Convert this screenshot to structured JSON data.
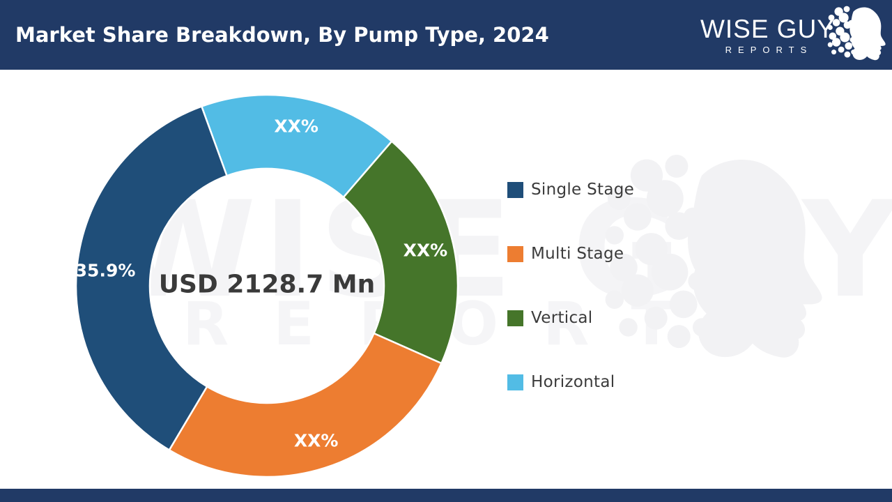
{
  "header": {
    "title": "Market Share Breakdown, By Pump Type, 2024",
    "logo": {
      "line1": "WISE GUY",
      "line2": "REPORTS"
    },
    "bg_color": "#213A66"
  },
  "watermark": {
    "line1": "WISE GUY",
    "line2": "REPORTS"
  },
  "chart_data": {
    "type": "pie",
    "variant": "donut",
    "title": "Market Share Breakdown, By Pump Type, 2024",
    "center_label": "USD 2128.7 Mn",
    "start_angle_deg": -20,
    "direction": "clockwise",
    "legend_position": "right",
    "segments": [
      {
        "name": "Horizontal",
        "value_pct": 16.9,
        "label": "XX%",
        "color": "#52BCE5"
      },
      {
        "name": "Vertical",
        "value_pct": 20.3,
        "label": "XX%",
        "color": "#45752A"
      },
      {
        "name": "Multi Stage",
        "value_pct": 26.9,
        "label": "XX%",
        "color": "#ED7D31"
      },
      {
        "name": "Single Stage",
        "value_pct": 35.9,
        "label": "35.9%",
        "color": "#1F4E79"
      }
    ],
    "legend": [
      {
        "label": "Single Stage",
        "color": "#1F4E79"
      },
      {
        "label": "Multi Stage",
        "color": "#ED7D31"
      },
      {
        "label": "Vertical",
        "color": "#45752A"
      },
      {
        "label": "Horizontal",
        "color": "#52BCE5"
      }
    ]
  }
}
